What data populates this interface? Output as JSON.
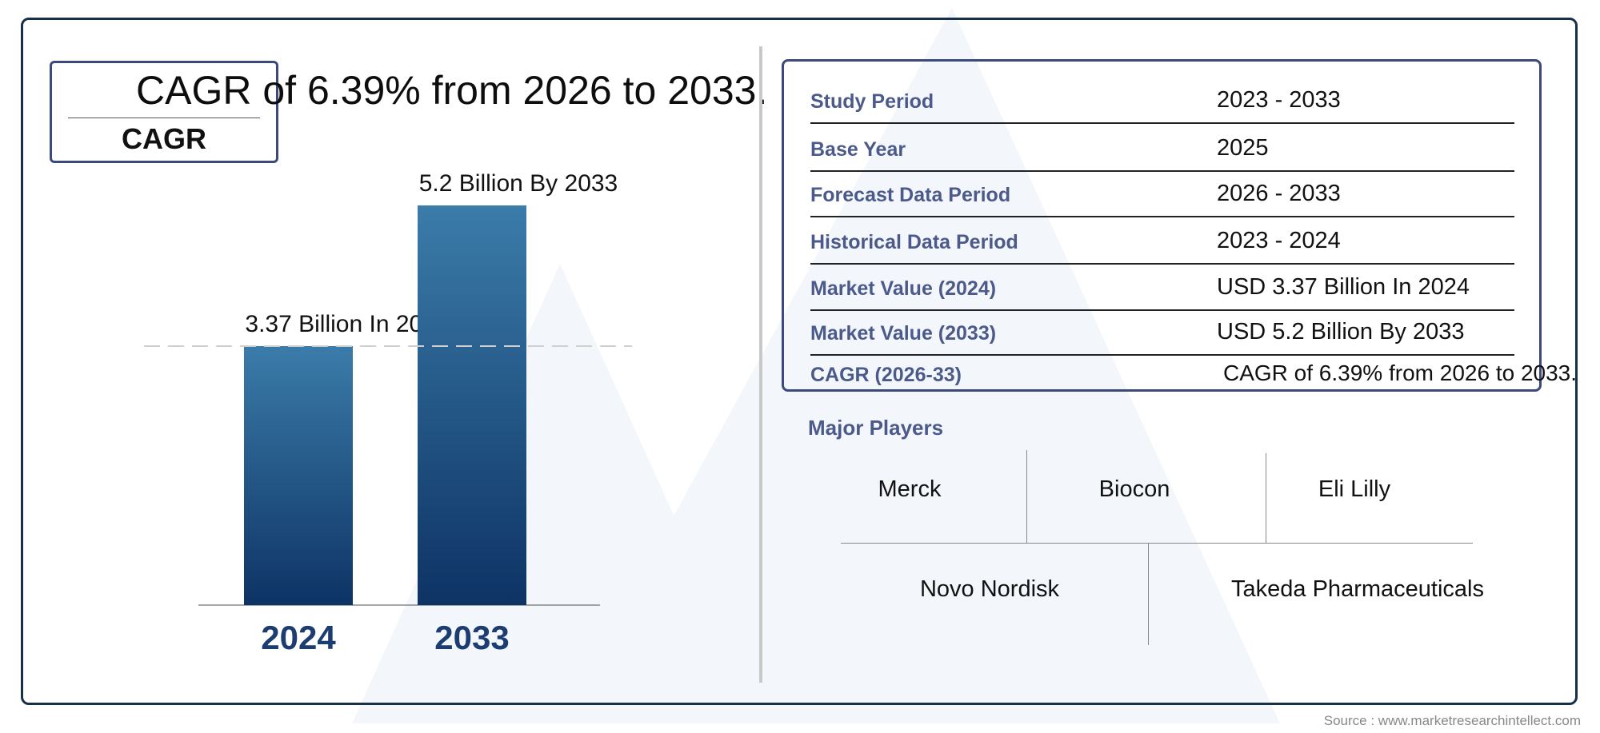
{
  "cagr_box": {
    "label": "CAGR",
    "headline": "CAGR of 6.39% from 2026 to 2033."
  },
  "chart_data": {
    "type": "bar",
    "categories": [
      "2024",
      "2033"
    ],
    "values": [
      3.37,
      5.2
    ],
    "value_labels": [
      "3.37 Billion In 2024",
      "5.2 Billion By 2033"
    ],
    "colors": {
      "bar_top": "#3b7caa",
      "bar_bottom": "#0d3364",
      "category_label": "#1c3d72"
    }
  },
  "table": {
    "rows": [
      {
        "key": "Study Period",
        "value": "2023 - 2033"
      },
      {
        "key": "Base Year",
        "value": "2025"
      },
      {
        "key": "Forecast Data Period",
        "value": "2026 - 2033"
      },
      {
        "key": "Historical Data Period",
        "value": "2023 - 2024"
      },
      {
        "key": "Market Value (2024)",
        "value": "USD 3.37 Billion In 2024"
      },
      {
        "key": "Market Value (2033)",
        "value": "USD 5.2 Billion By 2033"
      },
      {
        "key": "CAGR (2026-33)",
        "value": "CAGR of 6.39% from 2026 to 2033."
      }
    ]
  },
  "players": {
    "title": "Major Players",
    "row1": [
      "Merck",
      "Biocon",
      "Eli Lilly"
    ],
    "row2": [
      "Novo Nordisk",
      "Takeda Pharmaceuticals"
    ]
  },
  "source": "Source : www.marketresearchintellect.com",
  "colors": {
    "frame": "#16304a",
    "accent": "#4b5a8a",
    "watermark": "#f2f5f9"
  }
}
